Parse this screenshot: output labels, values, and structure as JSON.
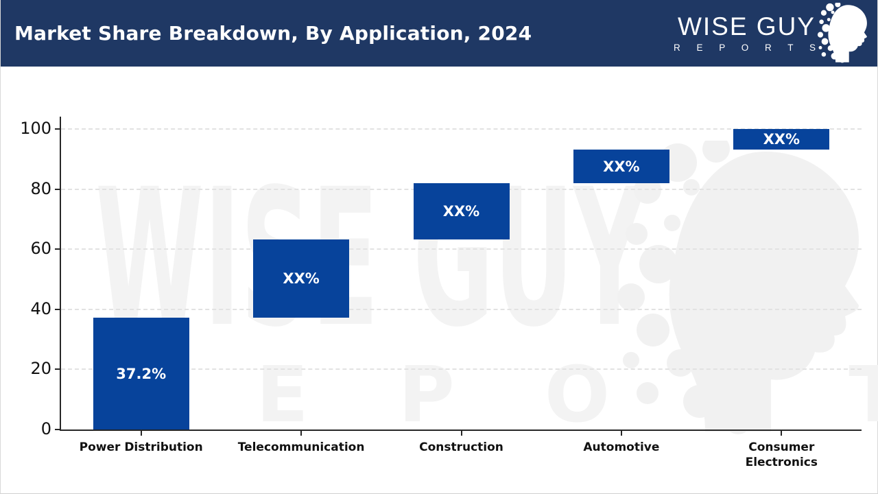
{
  "header": {
    "title": "Market Share Breakdown, By Application, 2024",
    "bg_color": "#1f3864",
    "logo": {
      "line1": "WISE GUY",
      "line2": "R E P O R T S"
    }
  },
  "watermark": {
    "line1": "WISE GUY",
    "line2": "R E P O R T S"
  },
  "chart_data": {
    "type": "bar",
    "subtype": "waterfall",
    "title": "Market Share Breakdown, By Application, 2024",
    "categories": [
      "Power Distribution",
      "Telecommunication",
      "Construction",
      "Automotive",
      "Consumer\nElectronics"
    ],
    "segments": [
      {
        "category": "Power Distribution",
        "start": 0,
        "end": 37.2,
        "label": "37.2%"
      },
      {
        "category": "Telecommunication",
        "start": 37.2,
        "end": 63.3,
        "label": "XX%"
      },
      {
        "category": "Construction",
        "start": 63.3,
        "end": 81.9,
        "label": "XX%"
      },
      {
        "category": "Automotive",
        "start": 81.9,
        "end": 93.1,
        "label": "XX%"
      },
      {
        "category": "Consumer\nElectronics",
        "start": 93.1,
        "end": 100,
        "label": "XX%"
      }
    ],
    "y_ticks": [
      0,
      20,
      40,
      60,
      80,
      100
    ],
    "ylim": [
      0,
      100
    ],
    "bar_color": "#07439b",
    "grid": "dashed-horizontal",
    "legend": "none"
  }
}
